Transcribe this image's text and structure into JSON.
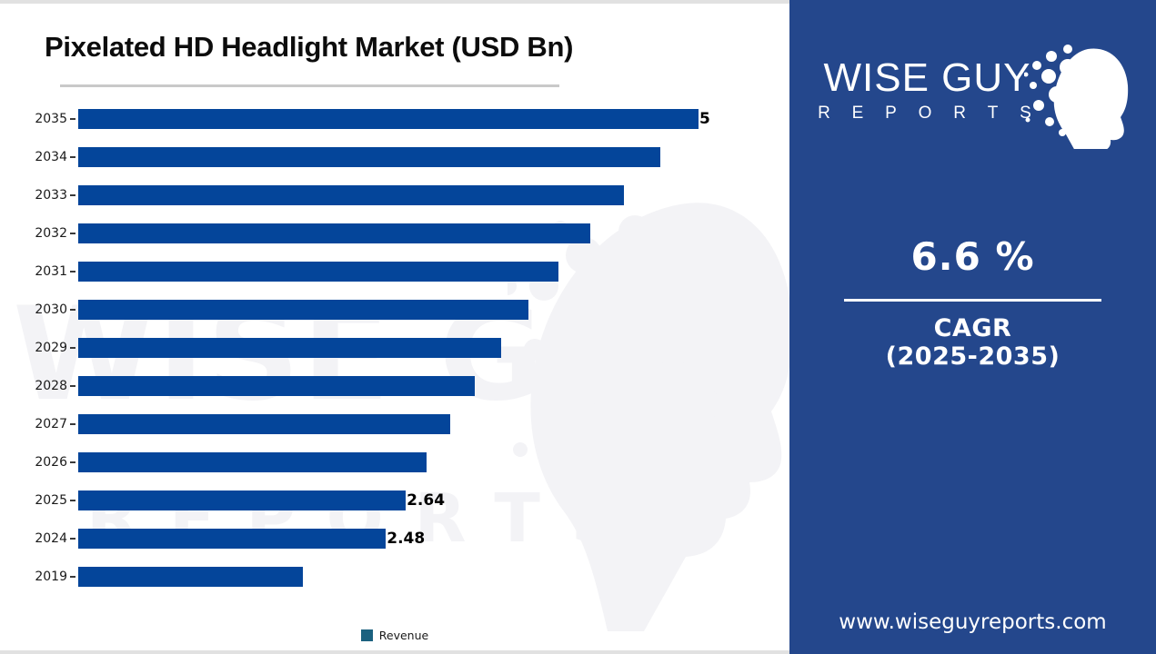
{
  "chart_data": {
    "type": "bar",
    "orientation": "horizontal",
    "title": "Pixelated HD Headlight Market (USD Bn)",
    "categories": [
      "2035",
      "2034",
      "2033",
      "2032",
      "2031",
      "2030",
      "2029",
      "2028",
      "2027",
      "2026",
      "2025",
      "2024",
      "2019"
    ],
    "values": [
      5.0,
      4.69,
      4.4,
      4.13,
      3.87,
      3.63,
      3.41,
      3.2,
      3.0,
      2.81,
      2.64,
      2.48,
      1.81
    ],
    "value_labels": [
      "5",
      "",
      "",
      "",
      "",
      "",
      "",
      "",
      "",
      "",
      "2.64",
      "2.48",
      ""
    ],
    "xlim": [
      0,
      5.6
    ],
    "grid": false,
    "bar_color": "#04459a",
    "legend_position": "bottom-center",
    "legend": [
      {
        "label": "Revenue",
        "color": "#1b617f"
      }
    ]
  },
  "colors": {
    "title_underline": "#c9c9c9",
    "edge_strip": "#e1e1e1",
    "watermark": "#f3f3f6",
    "panel_bg": "#24478c",
    "text_on_panel": "#ffffff"
  },
  "watermark": {
    "line1": "WISE GUY",
    "line2": "REPORTS"
  },
  "sidebar": {
    "brand_line1": "WISE GUY",
    "brand_line2": "REPORTS",
    "cagr_value": "6.6 %",
    "cagr_label1": "CAGR",
    "cagr_label2": "(2025-2035)",
    "website": "www.wiseguyreports.com"
  }
}
